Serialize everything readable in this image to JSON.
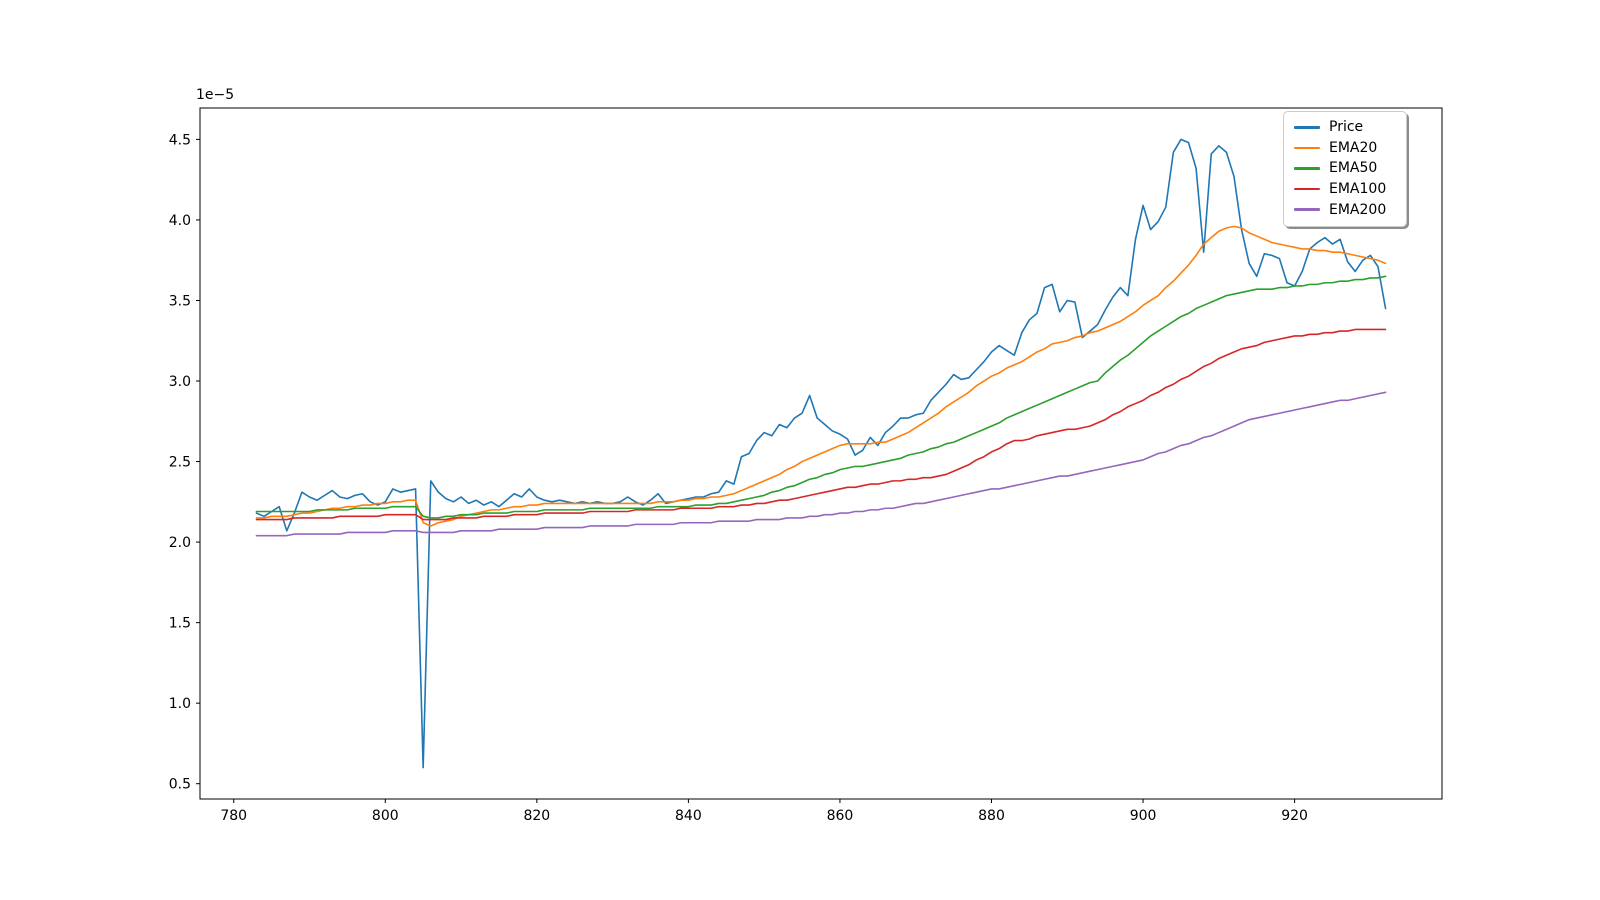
{
  "figure": {
    "background_color": "#ffffff",
    "axes_edge_color": "#000000"
  },
  "legend": {
    "position": "upper-right",
    "entries": [
      "Price",
      "EMA20",
      "EMA50",
      "EMA100",
      "EMA200"
    ]
  },
  "chart_data": {
    "type": "line",
    "title": "",
    "xlabel": "",
    "ylabel": "",
    "y_unit_multiplier": "1e−5",
    "x_start": 783,
    "x_end": 932,
    "xlim": [
      775.55,
      939.45
    ],
    "ylim": [
      0.405,
      4.695
    ],
    "grid": false,
    "x_axis": {
      "ticks": [
        780,
        800,
        820,
        840,
        860,
        880,
        900,
        920
      ]
    },
    "y_axis": {
      "ticks": [
        "0.5",
        "1.0",
        "1.5",
        "2.0",
        "2.5",
        "3.0",
        "3.5",
        "4.0",
        "4.5"
      ],
      "offset_label": "1e−5"
    },
    "series": [
      {
        "name": "Price",
        "color": "#1f77b4",
        "values": [
          2.18,
          2.16,
          2.19,
          2.22,
          2.07,
          2.18,
          2.31,
          2.28,
          2.26,
          2.29,
          2.32,
          2.28,
          2.27,
          2.29,
          2.3,
          2.25,
          2.23,
          2.25,
          2.33,
          2.31,
          2.32,
          2.33,
          0.6,
          2.38,
          2.31,
          2.27,
          2.25,
          2.28,
          2.24,
          2.26,
          2.23,
          2.25,
          2.22,
          2.26,
          2.3,
          2.28,
          2.33,
          2.28,
          2.26,
          2.25,
          2.26,
          2.25,
          2.24,
          2.25,
          2.24,
          2.25,
          2.24,
          2.24,
          2.25,
          2.28,
          2.25,
          2.23,
          2.26,
          2.3,
          2.24,
          2.25,
          2.26,
          2.27,
          2.28,
          2.28,
          2.3,
          2.31,
          2.38,
          2.36,
          2.53,
          2.55,
          2.63,
          2.68,
          2.66,
          2.73,
          2.71,
          2.77,
          2.8,
          2.91,
          2.77,
          2.73,
          2.69,
          2.67,
          2.64,
          2.54,
          2.57,
          2.65,
          2.6,
          2.68,
          2.72,
          2.77,
          2.77,
          2.79,
          2.8,
          2.88,
          2.93,
          2.98,
          3.04,
          3.01,
          3.02,
          3.07,
          3.12,
          3.18,
          3.22,
          3.19,
          3.16,
          3.3,
          3.38,
          3.42,
          3.58,
          3.6,
          3.43,
          3.5,
          3.49,
          3.27,
          3.31,
          3.35,
          3.44,
          3.52,
          3.58,
          3.53,
          3.88,
          4.09,
          3.94,
          3.99,
          4.08,
          4.42,
          4.5,
          4.48,
          4.32,
          3.8,
          4.41,
          4.46,
          4.42,
          4.27,
          3.94,
          3.73,
          3.65,
          3.79,
          3.78,
          3.76,
          3.61,
          3.59,
          3.68,
          3.82,
          3.86,
          3.89,
          3.85,
          3.88,
          3.74,
          3.68,
          3.75,
          3.78,
          3.71,
          3.45
        ]
      },
      {
        "name": "EMA20",
        "color": "#ff7f0e",
        "values": [
          2.15,
          2.15,
          2.16,
          2.16,
          2.16,
          2.17,
          2.18,
          2.18,
          2.19,
          2.2,
          2.21,
          2.21,
          2.22,
          2.22,
          2.23,
          2.23,
          2.24,
          2.24,
          2.25,
          2.25,
          2.26,
          2.26,
          2.12,
          2.1,
          2.12,
          2.13,
          2.14,
          2.16,
          2.17,
          2.18,
          2.19,
          2.2,
          2.2,
          2.21,
          2.22,
          2.22,
          2.23,
          2.23,
          2.24,
          2.24,
          2.24,
          2.24,
          2.24,
          2.24,
          2.24,
          2.24,
          2.24,
          2.24,
          2.24,
          2.24,
          2.24,
          2.24,
          2.24,
          2.25,
          2.25,
          2.25,
          2.26,
          2.26,
          2.27,
          2.27,
          2.28,
          2.28,
          2.29,
          2.3,
          2.32,
          2.34,
          2.36,
          2.38,
          2.4,
          2.42,
          2.45,
          2.47,
          2.5,
          2.52,
          2.54,
          2.56,
          2.58,
          2.6,
          2.61,
          2.61,
          2.61,
          2.61,
          2.62,
          2.62,
          2.64,
          2.66,
          2.68,
          2.71,
          2.74,
          2.77,
          2.8,
          2.84,
          2.87,
          2.9,
          2.93,
          2.97,
          3.0,
          3.03,
          3.05,
          3.08,
          3.1,
          3.12,
          3.15,
          3.18,
          3.2,
          3.23,
          3.24,
          3.25,
          3.27,
          3.28,
          3.3,
          3.31,
          3.33,
          3.35,
          3.37,
          3.4,
          3.43,
          3.47,
          3.5,
          3.53,
          3.58,
          3.62,
          3.67,
          3.72,
          3.78,
          3.85,
          3.89,
          3.93,
          3.95,
          3.96,
          3.95,
          3.92,
          3.9,
          3.88,
          3.86,
          3.85,
          3.84,
          3.83,
          3.82,
          3.82,
          3.81,
          3.81,
          3.8,
          3.8,
          3.79,
          3.78,
          3.77,
          3.76,
          3.75,
          3.73
        ]
      },
      {
        "name": "EMA50",
        "color": "#2ca02c",
        "values": [
          2.19,
          2.19,
          2.19,
          2.19,
          2.19,
          2.19,
          2.19,
          2.19,
          2.2,
          2.2,
          2.2,
          2.2,
          2.2,
          2.21,
          2.21,
          2.21,
          2.21,
          2.21,
          2.22,
          2.22,
          2.22,
          2.22,
          2.16,
          2.15,
          2.15,
          2.16,
          2.16,
          2.17,
          2.17,
          2.17,
          2.18,
          2.18,
          2.18,
          2.18,
          2.19,
          2.19,
          2.19,
          2.19,
          2.2,
          2.2,
          2.2,
          2.2,
          2.2,
          2.2,
          2.21,
          2.21,
          2.21,
          2.21,
          2.21,
          2.21,
          2.21,
          2.21,
          2.21,
          2.22,
          2.22,
          2.22,
          2.22,
          2.22,
          2.23,
          2.23,
          2.23,
          2.24,
          2.24,
          2.25,
          2.26,
          2.27,
          2.28,
          2.29,
          2.31,
          2.32,
          2.34,
          2.35,
          2.37,
          2.39,
          2.4,
          2.42,
          2.43,
          2.45,
          2.46,
          2.47,
          2.47,
          2.48,
          2.49,
          2.5,
          2.51,
          2.52,
          2.54,
          2.55,
          2.56,
          2.58,
          2.59,
          2.61,
          2.62,
          2.64,
          2.66,
          2.68,
          2.7,
          2.72,
          2.74,
          2.77,
          2.79,
          2.81,
          2.83,
          2.85,
          2.87,
          2.89,
          2.91,
          2.93,
          2.95,
          2.97,
          2.99,
          3.0,
          3.05,
          3.09,
          3.13,
          3.16,
          3.2,
          3.24,
          3.28,
          3.31,
          3.34,
          3.37,
          3.4,
          3.42,
          3.45,
          3.47,
          3.49,
          3.51,
          3.53,
          3.54,
          3.55,
          3.56,
          3.57,
          3.57,
          3.57,
          3.58,
          3.58,
          3.59,
          3.59,
          3.6,
          3.6,
          3.61,
          3.61,
          3.62,
          3.62,
          3.63,
          3.63,
          3.64,
          3.64,
          3.65
        ]
      },
      {
        "name": "EMA100",
        "color": "#d62728",
        "values": [
          2.14,
          2.14,
          2.14,
          2.14,
          2.14,
          2.15,
          2.15,
          2.15,
          2.15,
          2.15,
          2.15,
          2.16,
          2.16,
          2.16,
          2.16,
          2.16,
          2.16,
          2.17,
          2.17,
          2.17,
          2.17,
          2.17,
          2.14,
          2.14,
          2.14,
          2.14,
          2.15,
          2.15,
          2.15,
          2.15,
          2.16,
          2.16,
          2.16,
          2.16,
          2.17,
          2.17,
          2.17,
          2.17,
          2.18,
          2.18,
          2.18,
          2.18,
          2.18,
          2.18,
          2.19,
          2.19,
          2.19,
          2.19,
          2.19,
          2.19,
          2.2,
          2.2,
          2.2,
          2.2,
          2.2,
          2.2,
          2.21,
          2.21,
          2.21,
          2.21,
          2.21,
          2.22,
          2.22,
          2.22,
          2.23,
          2.23,
          2.24,
          2.24,
          2.25,
          2.26,
          2.26,
          2.27,
          2.28,
          2.29,
          2.3,
          2.31,
          2.32,
          2.33,
          2.34,
          2.34,
          2.35,
          2.36,
          2.36,
          2.37,
          2.38,
          2.38,
          2.39,
          2.39,
          2.4,
          2.4,
          2.41,
          2.42,
          2.44,
          2.46,
          2.48,
          2.51,
          2.53,
          2.56,
          2.58,
          2.61,
          2.63,
          2.63,
          2.64,
          2.66,
          2.67,
          2.68,
          2.69,
          2.7,
          2.7,
          2.71,
          2.72,
          2.74,
          2.76,
          2.79,
          2.81,
          2.84,
          2.86,
          2.88,
          2.91,
          2.93,
          2.96,
          2.98,
          3.01,
          3.03,
          3.06,
          3.09,
          3.11,
          3.14,
          3.16,
          3.18,
          3.2,
          3.21,
          3.22,
          3.24,
          3.25,
          3.26,
          3.27,
          3.28,
          3.28,
          3.29,
          3.29,
          3.3,
          3.3,
          3.31,
          3.31,
          3.32,
          3.32,
          3.32,
          3.32,
          3.32
        ]
      },
      {
        "name": "EMA200",
        "color": "#9467bd",
        "values": [
          2.04,
          2.04,
          2.04,
          2.04,
          2.04,
          2.05,
          2.05,
          2.05,
          2.05,
          2.05,
          2.05,
          2.05,
          2.06,
          2.06,
          2.06,
          2.06,
          2.06,
          2.06,
          2.07,
          2.07,
          2.07,
          2.07,
          2.06,
          2.06,
          2.06,
          2.06,
          2.06,
          2.07,
          2.07,
          2.07,
          2.07,
          2.07,
          2.08,
          2.08,
          2.08,
          2.08,
          2.08,
          2.08,
          2.09,
          2.09,
          2.09,
          2.09,
          2.09,
          2.09,
          2.1,
          2.1,
          2.1,
          2.1,
          2.1,
          2.1,
          2.11,
          2.11,
          2.11,
          2.11,
          2.11,
          2.11,
          2.12,
          2.12,
          2.12,
          2.12,
          2.12,
          2.13,
          2.13,
          2.13,
          2.13,
          2.13,
          2.14,
          2.14,
          2.14,
          2.14,
          2.15,
          2.15,
          2.15,
          2.16,
          2.16,
          2.17,
          2.17,
          2.18,
          2.18,
          2.19,
          2.19,
          2.2,
          2.2,
          2.21,
          2.21,
          2.22,
          2.23,
          2.24,
          2.24,
          2.25,
          2.26,
          2.27,
          2.28,
          2.29,
          2.3,
          2.31,
          2.32,
          2.33,
          2.33,
          2.34,
          2.35,
          2.36,
          2.37,
          2.38,
          2.39,
          2.4,
          2.41,
          2.41,
          2.42,
          2.43,
          2.44,
          2.45,
          2.46,
          2.47,
          2.48,
          2.49,
          2.5,
          2.51,
          2.53,
          2.55,
          2.56,
          2.58,
          2.6,
          2.61,
          2.63,
          2.65,
          2.66,
          2.68,
          2.7,
          2.72,
          2.74,
          2.76,
          2.77,
          2.78,
          2.79,
          2.8,
          2.81,
          2.82,
          2.83,
          2.84,
          2.85,
          2.86,
          2.87,
          2.88,
          2.88,
          2.89,
          2.9,
          2.91,
          2.92,
          2.93
        ]
      }
    ]
  }
}
